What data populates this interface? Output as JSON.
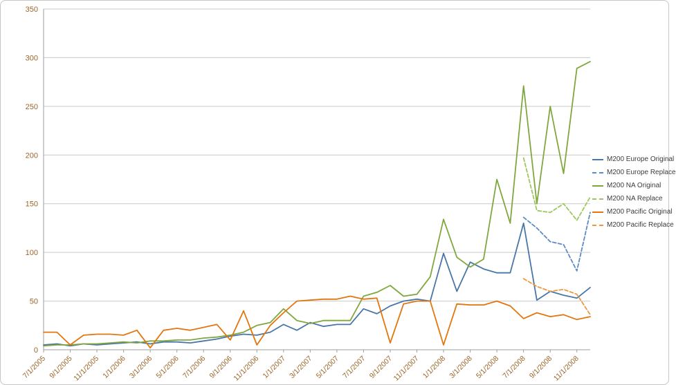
{
  "chart_style": {
    "background": "#ffffff",
    "frame_border": "#c5c5c5",
    "grid_color": "#c9c9c9",
    "axis_line_color": "#9d9d9d",
    "tick_label_color": "#9c6528",
    "legend_text_color": "#3c3c3c"
  },
  "chart_data": {
    "type": "line",
    "title": "",
    "xlabel": "",
    "ylabel": "",
    "ylim": [
      0,
      350
    ],
    "y_ticks": [
      0,
      50,
      100,
      150,
      200,
      250,
      300,
      350
    ],
    "x_tick_every": 2,
    "grid": true,
    "legend_position": "right",
    "x": [
      "7/1/2005",
      "8/1/2005",
      "9/1/2005",
      "10/1/2005",
      "11/1/2005",
      "12/1/2005",
      "1/1/2006",
      "2/1/2006",
      "3/1/2006",
      "4/1/2006",
      "5/1/2006",
      "6/1/2006",
      "7/1/2006",
      "8/1/2006",
      "9/1/2006",
      "10/1/2006",
      "11/1/2006",
      "12/1/2006",
      "1/1/2007",
      "2/1/2007",
      "3/1/2007",
      "4/1/2007",
      "5/1/2007",
      "6/1/2007",
      "7/1/2007",
      "8/1/2007",
      "9/1/2007",
      "10/1/2007",
      "11/1/2007",
      "12/1/2007",
      "1/1/2008",
      "2/1/2008",
      "3/1/2008",
      "4/1/2008",
      "5/1/2008",
      "6/1/2008",
      "7/1/2008",
      "8/1/2008",
      "9/1/2008",
      "10/1/2008",
      "11/1/2008",
      "12/1/2008"
    ],
    "series": [
      {
        "name": "M200 Europe Original",
        "color": "#4876a8",
        "dash": "solid",
        "values": [
          5,
          6,
          4,
          6,
          5,
          6,
          7,
          8,
          6,
          8,
          8,
          7,
          9,
          11,
          14,
          16,
          15,
          18,
          26,
          20,
          28,
          24,
          26,
          26,
          42,
          37,
          45,
          50,
          52,
          50,
          99,
          60,
          90,
          83,
          79,
          79,
          130,
          51,
          60,
          56,
          53,
          64
        ]
      },
      {
        "name": "M200 Europe Replace",
        "color": "#5b8bc4",
        "dash": "dashed",
        "values": [
          null,
          null,
          null,
          null,
          null,
          null,
          null,
          null,
          null,
          null,
          null,
          null,
          null,
          null,
          null,
          null,
          null,
          null,
          null,
          null,
          null,
          null,
          null,
          null,
          null,
          null,
          null,
          null,
          null,
          null,
          null,
          null,
          null,
          null,
          null,
          null,
          136,
          125,
          111,
          108,
          81,
          141
        ]
      },
      {
        "name": "M200 NA Original",
        "color": "#80a73e",
        "dash": "solid",
        "values": [
          4,
          5,
          5,
          6,
          6,
          7,
          8,
          7,
          9,
          9,
          10,
          10,
          12,
          13,
          15,
          18,
          25,
          28,
          42,
          30,
          27,
          30,
          30,
          30,
          55,
          59,
          66,
          55,
          57,
          75,
          134,
          95,
          85,
          93,
          175,
          130,
          271,
          150,
          250,
          181,
          289,
          296
        ]
      },
      {
        "name": "M200 NA Replace",
        "color": "#9cc75f",
        "dash": "dashed",
        "values": [
          null,
          null,
          null,
          null,
          null,
          null,
          null,
          null,
          null,
          null,
          null,
          null,
          null,
          null,
          null,
          null,
          null,
          null,
          null,
          null,
          null,
          null,
          null,
          null,
          null,
          null,
          null,
          null,
          null,
          null,
          null,
          null,
          null,
          null,
          null,
          null,
          197,
          143,
          141,
          150,
          133,
          157
        ]
      },
      {
        "name": "M200 Pacific Original",
        "color": "#e2760f",
        "dash": "solid",
        "values": [
          18,
          18,
          5,
          15,
          16,
          16,
          15,
          20,
          2,
          20,
          22,
          20,
          23,
          26,
          10,
          40,
          5,
          25,
          38,
          50,
          51,
          52,
          52,
          55,
          52,
          53,
          7,
          47,
          50,
          50,
          5,
          47,
          46,
          46,
          50,
          45,
          32,
          38,
          34,
          36,
          31,
          34
        ]
      },
      {
        "name": "M200 Pacific Replace",
        "color": "#ec9a40",
        "dash": "dashed",
        "values": [
          null,
          null,
          null,
          null,
          null,
          null,
          null,
          null,
          null,
          null,
          null,
          null,
          null,
          null,
          null,
          null,
          null,
          null,
          null,
          null,
          null,
          null,
          null,
          null,
          null,
          null,
          null,
          null,
          null,
          null,
          null,
          null,
          null,
          null,
          null,
          null,
          73,
          65,
          60,
          62,
          57,
          36
        ]
      }
    ]
  }
}
